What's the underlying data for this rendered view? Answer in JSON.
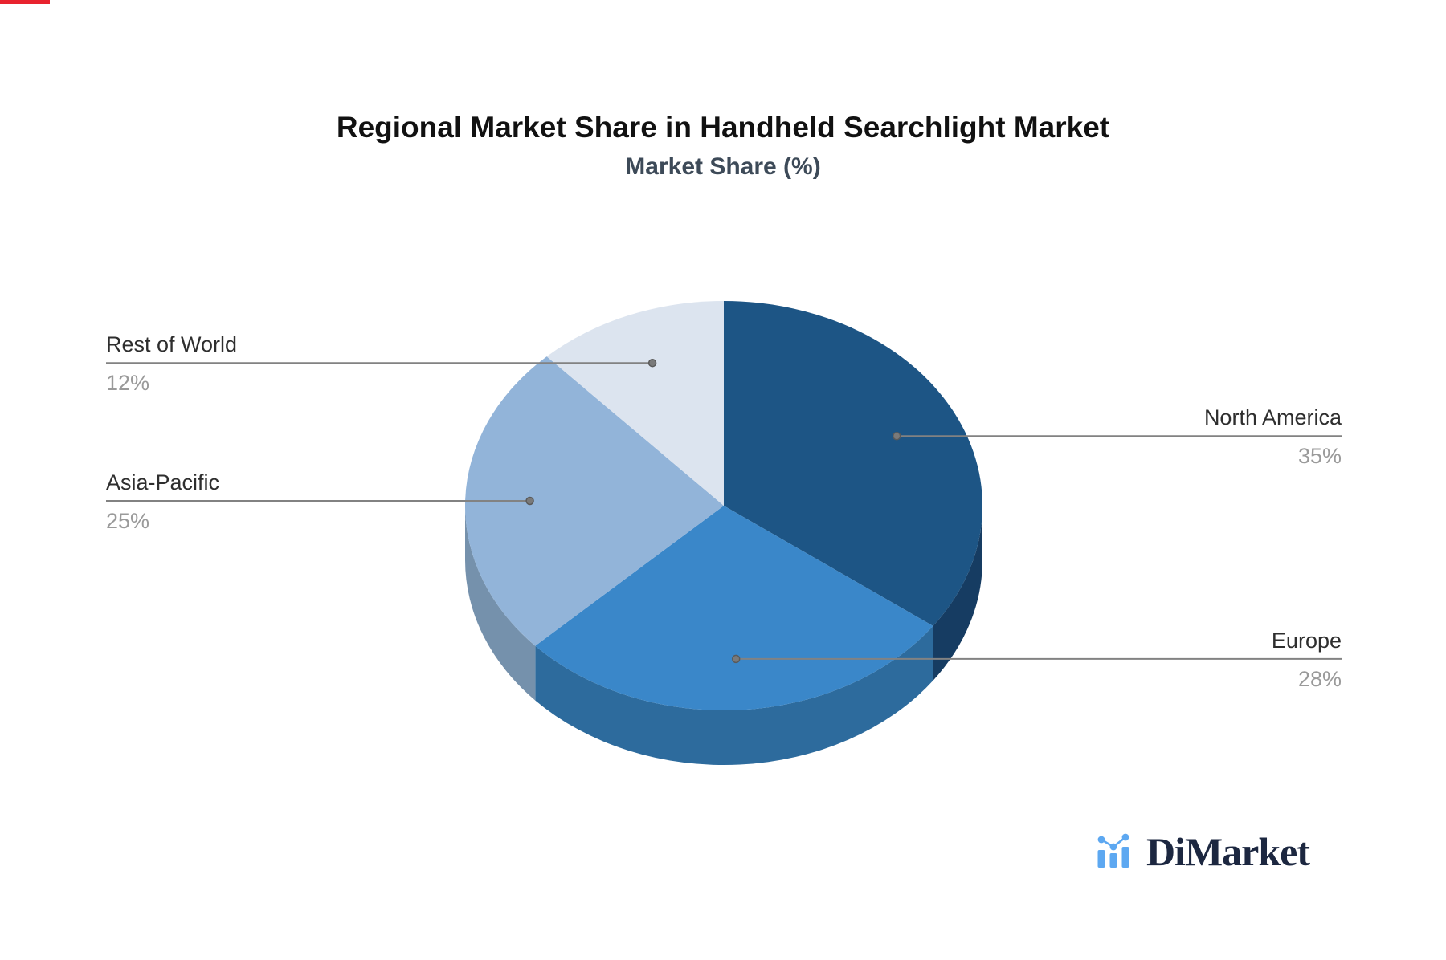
{
  "page": {
    "background": "#ffffff",
    "top_left_marker_color": "#e8232e"
  },
  "header": {
    "title": "Regional Market Share in Handheld Searchlight Market",
    "subtitle": "Market Share (%)"
  },
  "branding": {
    "logo_text": "DiMarket",
    "logo_text_color": "#1c2740",
    "logo_accent_color": "#5da8f1"
  },
  "chart_data": {
    "type": "pie",
    "style": "3d",
    "title": "Regional Market Share in Handheld Searchlight Market",
    "subtitle": "Market Share (%)",
    "unit": "%",
    "start_angle_deg": 0,
    "direction": "clockwise",
    "legend_position": "callout-labels",
    "slices": [
      {
        "label": "North America",
        "value": 35,
        "color": "#1d5585",
        "side_color": "#163c62",
        "callout_side": "right"
      },
      {
        "label": "Europe",
        "value": 28,
        "color": "#3a87c9",
        "side_color": "#2d6b9d",
        "callout_side": "right"
      },
      {
        "label": "Asia-Pacific",
        "value": 25,
        "color": "#92b4d9",
        "side_color": "#7591ac",
        "callout_side": "left"
      },
      {
        "label": "Rest of World",
        "value": 12,
        "color": "#dce4ef",
        "side_color": "#c3cedd",
        "callout_side": "left"
      }
    ],
    "label_color": "#2e2e2e",
    "value_color": "#9a9a9a",
    "leader_line_color": "#828282",
    "leader_dot_color": "#7a7a7a"
  }
}
